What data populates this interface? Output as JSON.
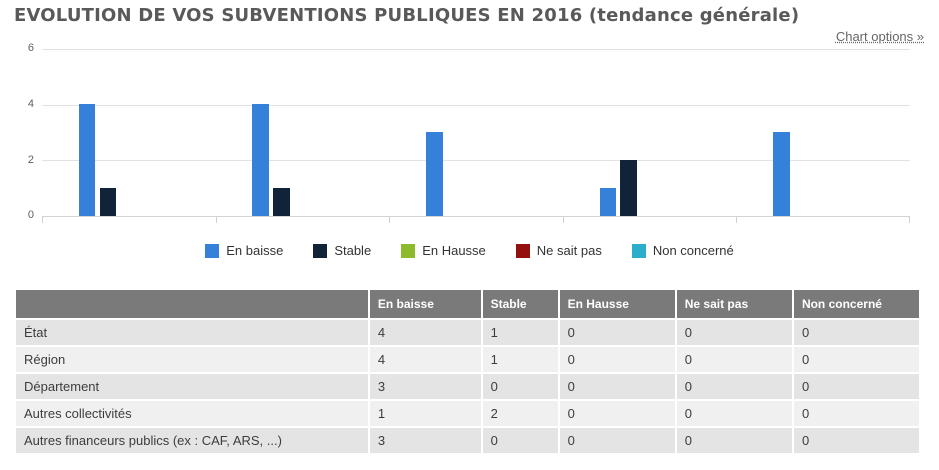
{
  "title": "EVOLUTION DE VOS SUBVENTIONS PUBLIQUES EN 2016 (tendance générale)",
  "chart_options_label": "Chart options »",
  "chart_data": {
    "type": "bar",
    "title": "EVOLUTION DE VOS SUBVENTIONS PUBLIQUES EN 2016 (tendance générale)",
    "categories": [
      "État",
      "Région",
      "Département",
      "Autres collectivités",
      "Autres financeurs publics (ex : CAF, ARS, ...)"
    ],
    "series": [
      {
        "name": "En baisse",
        "color": "#3580d9",
        "values": [
          4,
          4,
          3,
          1,
          3
        ]
      },
      {
        "name": "Stable",
        "color": "#112338",
        "values": [
          1,
          1,
          0,
          2,
          0
        ]
      },
      {
        "name": "En Hausse",
        "color": "#8dbb2d",
        "values": [
          0,
          0,
          0,
          0,
          0
        ]
      },
      {
        "name": "Ne sait pas",
        "color": "#94100f",
        "values": [
          0,
          0,
          0,
          0,
          0
        ]
      },
      {
        "name": "Non concerné",
        "color": "#2aaecb",
        "values": [
          0,
          0,
          0,
          0,
          0
        ]
      }
    ],
    "xlabel": "",
    "ylabel": "",
    "ylim": [
      0,
      6
    ],
    "yticks": [
      6,
      4,
      2,
      0
    ],
    "grid": true,
    "legend_position": "bottom"
  },
  "table": {
    "headers": [
      "",
      "En baisse",
      "Stable",
      "En Hausse",
      "Ne sait pas",
      "Non concerné"
    ],
    "rows": [
      {
        "label": "État",
        "values": [
          "4",
          "1",
          "0",
          "0",
          "0"
        ]
      },
      {
        "label": "Région",
        "values": [
          "4",
          "1",
          "0",
          "0",
          "0"
        ]
      },
      {
        "label": "Département",
        "values": [
          "3",
          "0",
          "0",
          "0",
          "0"
        ]
      },
      {
        "label": "Autres collectivités",
        "values": [
          "1",
          "2",
          "0",
          "0",
          "0"
        ]
      },
      {
        "label": "Autres financeurs publics (ex : CAF, ARS, ...)",
        "values": [
          "3",
          "0",
          "0",
          "0",
          "0"
        ]
      }
    ]
  },
  "colors": {
    "title_text": "#595959",
    "link_text": "#666666",
    "grid_line": "#e2e2e2",
    "axis_line": "#d3d3d3",
    "axis_tick": "#c9d2dc",
    "table_header_bg": "#7a7a7a",
    "table_header_text": "#ffffff",
    "table_row_odd_bg": "#e4e4e4",
    "table_row_even_bg": "#f0f0f0",
    "table_text": "#3d3d3d"
  }
}
